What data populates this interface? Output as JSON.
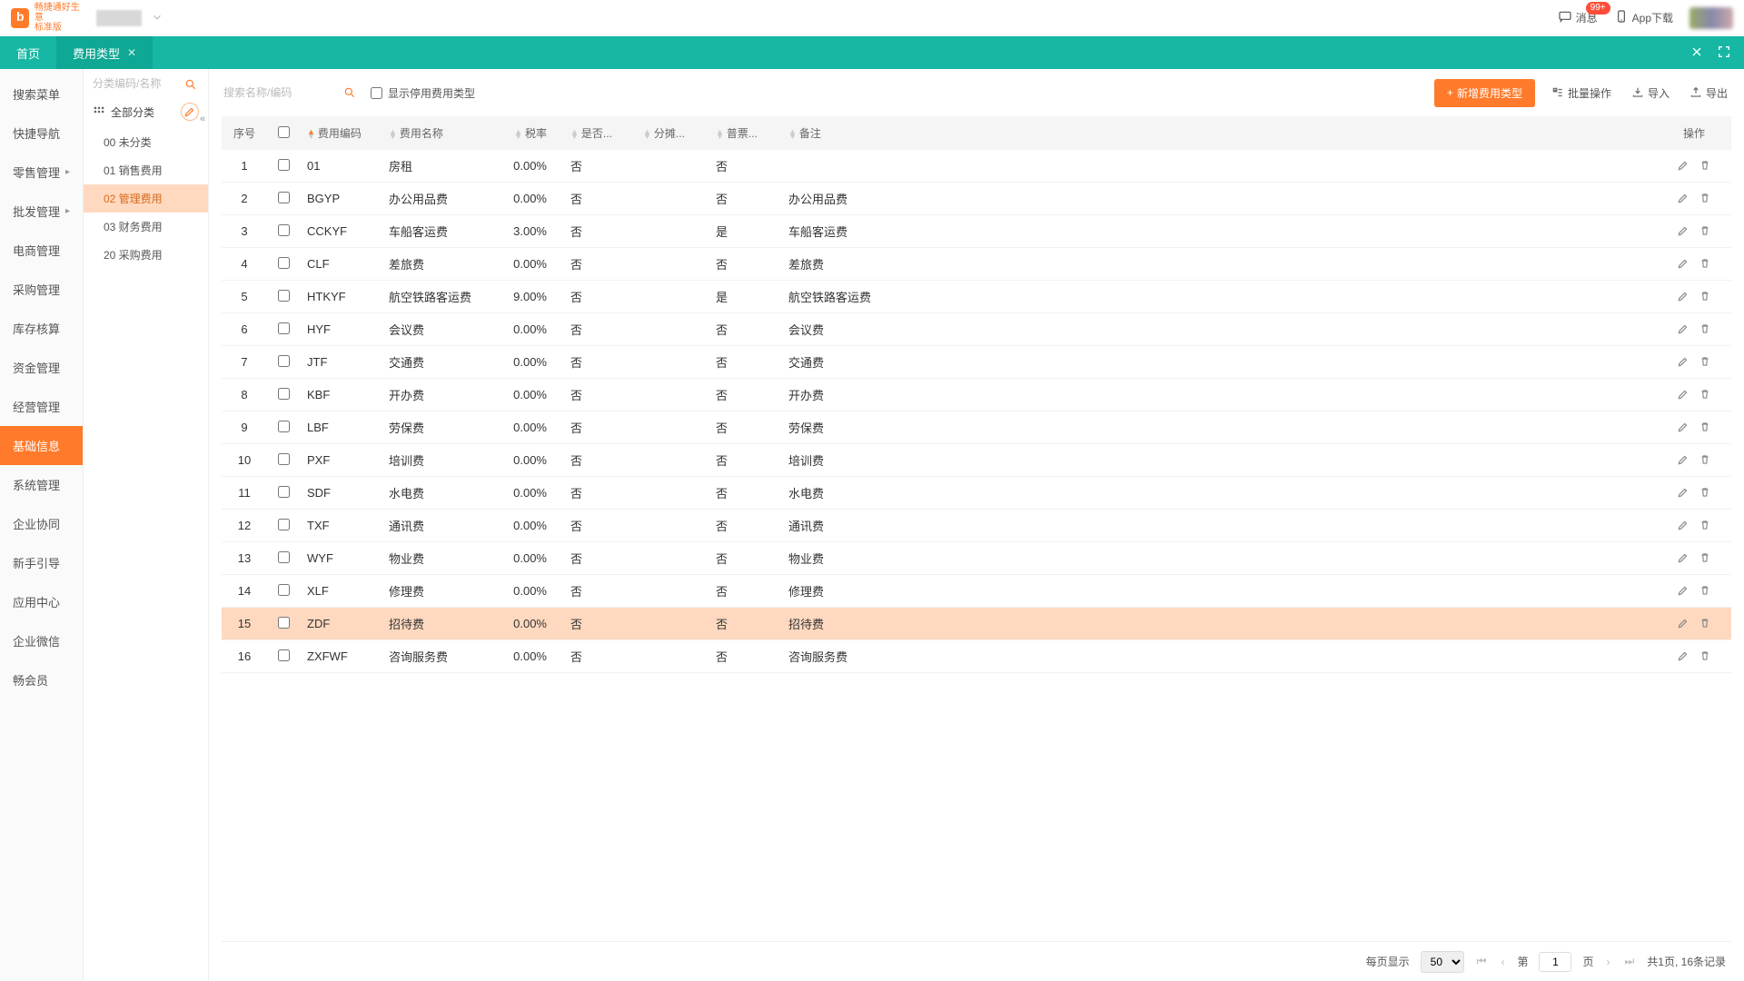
{
  "brand": {
    "line1": "畅捷通好生意",
    "line2": "标准版"
  },
  "header": {
    "message_label": "消息",
    "message_badge": "99+",
    "app_label": "App下载"
  },
  "tabs": [
    {
      "label": "首页",
      "closable": false,
      "active": false
    },
    {
      "label": "费用类型",
      "closable": true,
      "active": true
    }
  ],
  "sidebar": [
    {
      "label": "搜索菜单",
      "caret": false
    },
    {
      "label": "快捷导航",
      "caret": false
    },
    {
      "label": "零售管理",
      "caret": true
    },
    {
      "label": "批发管理",
      "caret": true
    },
    {
      "label": "电商管理",
      "caret": false
    },
    {
      "label": "采购管理",
      "caret": false
    },
    {
      "label": "库存核算",
      "caret": false
    },
    {
      "label": "资金管理",
      "caret": false
    },
    {
      "label": "经营管理",
      "caret": false
    },
    {
      "label": "基础信息",
      "caret": false,
      "active": true
    },
    {
      "label": "系统管理",
      "caret": false
    },
    {
      "label": "企业协同",
      "caret": false
    },
    {
      "label": "新手引导",
      "caret": false
    },
    {
      "label": "应用中心",
      "caret": false
    },
    {
      "label": "企业微信",
      "caret": false
    },
    {
      "label": "畅会员",
      "caret": false
    }
  ],
  "category": {
    "search_placeholder": "分类编码/名称",
    "all_label": "全部分类",
    "items": [
      {
        "label": "00 未分类"
      },
      {
        "label": "01 销售费用"
      },
      {
        "label": "02 管理费用",
        "active": true
      },
      {
        "label": "03 财务费用"
      },
      {
        "label": "20 采购费用"
      }
    ]
  },
  "toolbar": {
    "search_placeholder": "搜索名称/编码",
    "show_disabled_label": "显示停用费用类型",
    "add_label": "新增费用类型",
    "batch_label": "批量操作",
    "import_label": "导入",
    "export_label": "导出"
  },
  "columns": {
    "seq": "序号",
    "code": "费用编码",
    "name": "费用名称",
    "rate": "税率",
    "bool1": "是否...",
    "bool2": "分摊...",
    "bool3": "普票...",
    "remark": "备注",
    "ops": "操作"
  },
  "rows": [
    {
      "seq": 1,
      "code": "01",
      "name": "房租",
      "rate": "0.00%",
      "b1": "否",
      "b2": "",
      "b3": "否",
      "remark": ""
    },
    {
      "seq": 2,
      "code": "BGYP",
      "name": "办公用品费",
      "rate": "0.00%",
      "b1": "否",
      "b2": "",
      "b3": "否",
      "remark": "办公用品费"
    },
    {
      "seq": 3,
      "code": "CCKYF",
      "name": "车船客运费",
      "rate": "3.00%",
      "b1": "否",
      "b2": "",
      "b3": "是",
      "remark": "车船客运费"
    },
    {
      "seq": 4,
      "code": "CLF",
      "name": "差旅费",
      "rate": "0.00%",
      "b1": "否",
      "b2": "",
      "b3": "否",
      "remark": "差旅费"
    },
    {
      "seq": 5,
      "code": "HTKYF",
      "name": "航空铁路客运费",
      "rate": "9.00%",
      "b1": "否",
      "b2": "",
      "b3": "是",
      "remark": "航空铁路客运费"
    },
    {
      "seq": 6,
      "code": "HYF",
      "name": "会议费",
      "rate": "0.00%",
      "b1": "否",
      "b2": "",
      "b3": "否",
      "remark": "会议费"
    },
    {
      "seq": 7,
      "code": "JTF",
      "name": "交通费",
      "rate": "0.00%",
      "b1": "否",
      "b2": "",
      "b3": "否",
      "remark": "交通费"
    },
    {
      "seq": 8,
      "code": "KBF",
      "name": "开办费",
      "rate": "0.00%",
      "b1": "否",
      "b2": "",
      "b3": "否",
      "remark": "开办费"
    },
    {
      "seq": 9,
      "code": "LBF",
      "name": "劳保费",
      "rate": "0.00%",
      "b1": "否",
      "b2": "",
      "b3": "否",
      "remark": "劳保费"
    },
    {
      "seq": 10,
      "code": "PXF",
      "name": "培训费",
      "rate": "0.00%",
      "b1": "否",
      "b2": "",
      "b3": "否",
      "remark": "培训费"
    },
    {
      "seq": 11,
      "code": "SDF",
      "name": "水电费",
      "rate": "0.00%",
      "b1": "否",
      "b2": "",
      "b3": "否",
      "remark": "水电费"
    },
    {
      "seq": 12,
      "code": "TXF",
      "name": "通讯费",
      "rate": "0.00%",
      "b1": "否",
      "b2": "",
      "b3": "否",
      "remark": "通讯费"
    },
    {
      "seq": 13,
      "code": "WYF",
      "name": "物业费",
      "rate": "0.00%",
      "b1": "否",
      "b2": "",
      "b3": "否",
      "remark": "物业费"
    },
    {
      "seq": 14,
      "code": "XLF",
      "name": "修理费",
      "rate": "0.00%",
      "b1": "否",
      "b2": "",
      "b3": "否",
      "remark": "修理费"
    },
    {
      "seq": 15,
      "code": "ZDF",
      "name": "招待费",
      "rate": "0.00%",
      "b1": "否",
      "b2": "",
      "b3": "否",
      "remark": "招待费",
      "highlight": true
    },
    {
      "seq": 16,
      "code": "ZXFWF",
      "name": "咨询服务费",
      "rate": "0.00%",
      "b1": "否",
      "b2": "",
      "b3": "否",
      "remark": "咨询服务费"
    }
  ],
  "pager": {
    "per_page_label": "每页显示",
    "per_page_value": "50",
    "page_prefix": "第",
    "page_value": "1",
    "page_suffix": "页",
    "summary": "共1页, 16条记录"
  },
  "colors": {
    "primary": "#ff7a2a",
    "teal": "#16b8a3",
    "highlight_row": "#ffd9bf"
  }
}
